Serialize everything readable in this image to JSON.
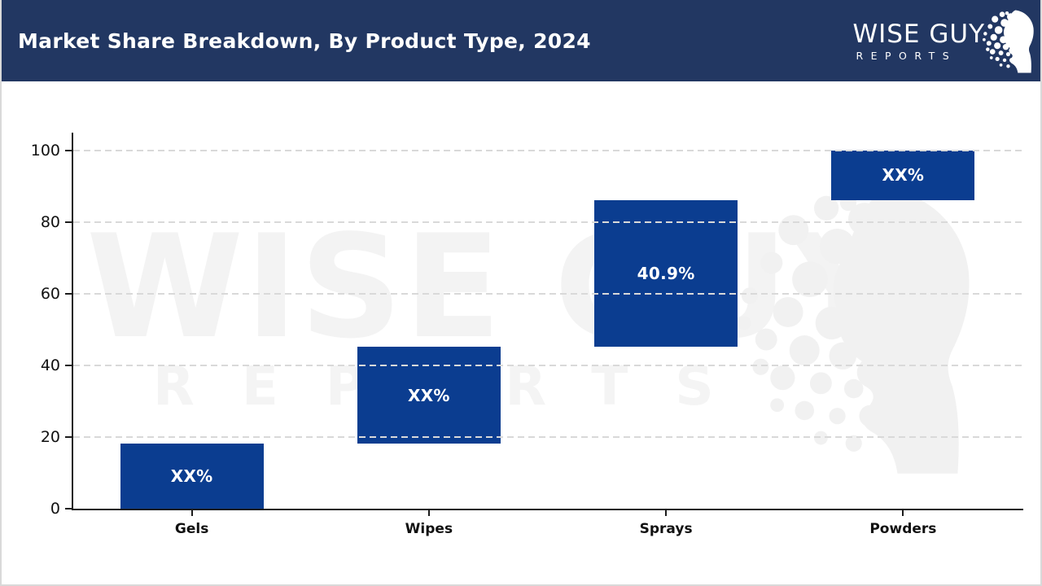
{
  "header": {
    "title": "Market Share Breakdown, By Product Type, 2024",
    "brand": {
      "name": "WISE GUY",
      "tagline": "REPORTS"
    }
  },
  "watermark": {
    "line1": "WISE GUY",
    "line2": "REPORTS"
  },
  "colors": {
    "header_bg": "#223762",
    "bar": "#0b3d90",
    "bar_label": "#ffffff",
    "grid": "#d9d9d9",
    "axis": "#1c1c1c",
    "watermark": "#f3f3f3",
    "page_border": "#d9d9d9"
  },
  "chart_data": {
    "type": "bar",
    "subtype": "floating-waterfall",
    "title": "Market Share Breakdown, By Product Type, 2024",
    "categories": [
      "Gels",
      "Wipes",
      "Sprays",
      "Powders"
    ],
    "bars": [
      {
        "category": "Gels",
        "base": 0,
        "top": 18.1,
        "height": 18.1,
        "label": "XX%"
      },
      {
        "category": "Wipes",
        "base": 18.1,
        "top": 45.3,
        "height": 27.2,
        "label": "XX%"
      },
      {
        "category": "Sprays",
        "base": 45.3,
        "top": 86.2,
        "height": 40.9,
        "label": "40.9%"
      },
      {
        "category": "Powders",
        "base": 86.2,
        "top": 100,
        "height": 13.8,
        "label": "XX%"
      }
    ],
    "yticks": [
      0,
      20,
      40,
      60,
      80,
      100
    ],
    "ylim": [
      0,
      105
    ],
    "xlabel": "",
    "ylabel": "",
    "grid": "horizontal-dashed-over-bars",
    "legend": "none",
    "bar_color": "#0b3d90",
    "bar_label_color": "#ffffff"
  }
}
